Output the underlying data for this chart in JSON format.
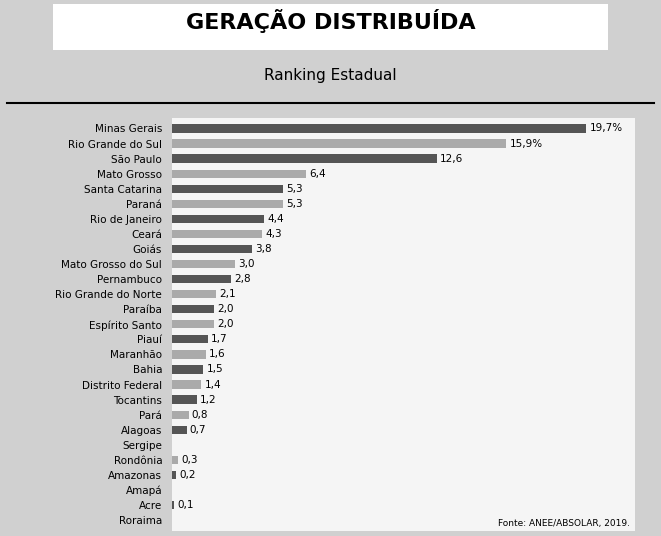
{
  "title": "GERAÇÃO DISTRIBUÍDA",
  "subtitle": "Ranking Estadual",
  "fonte": "Fonte: ANEE/ABSOLAR, 2019.",
  "categories": [
    "Minas Gerais",
    "Rio Grande do Sul",
    "São Paulo",
    "Mato Grosso",
    "Santa Catarina",
    "Paraná",
    "Rio de Janeiro",
    "Ceará",
    "Goiás",
    "Mato Grosso do Sul",
    "Pernambuco",
    "Rio Grande do Norte",
    "Paraíba",
    "Espírito Santo",
    "Piauí",
    "Maranhão",
    "Bahia",
    "Distrito Federal",
    "Tocantins",
    "Pará",
    "Alagoas",
    "Sergipe",
    "Rondônia",
    "Amazonas",
    "Amapá",
    "Acre",
    "Roraima"
  ],
  "values": [
    19.7,
    15.9,
    12.6,
    6.4,
    5.3,
    5.3,
    4.4,
    4.3,
    3.8,
    3.0,
    2.8,
    2.1,
    2.0,
    2.0,
    1.7,
    1.6,
    1.5,
    1.4,
    1.2,
    0.8,
    0.7,
    0.0,
    0.3,
    0.2,
    0.0,
    0.1,
    0.0
  ],
  "labels": [
    "19,7%",
    "15,9%",
    "12,6",
    "6,4",
    "5,3",
    "5,3",
    "4,4",
    "4,3",
    "3,8",
    "3,0",
    "2,8",
    "2,1",
    "2,0",
    "2,0",
    "1,7",
    "1,6",
    "1,5",
    "1,4",
    "1,2",
    "0,8",
    "0,7",
    "",
    "0,3",
    "0,2",
    "",
    "0,1",
    ""
  ],
  "bar_colors": [
    "#555555",
    "#aaaaaa",
    "#555555",
    "#aaaaaa",
    "#555555",
    "#aaaaaa",
    "#555555",
    "#aaaaaa",
    "#555555",
    "#aaaaaa",
    "#555555",
    "#aaaaaa",
    "#555555",
    "#aaaaaa",
    "#555555",
    "#aaaaaa",
    "#555555",
    "#aaaaaa",
    "#555555",
    "#aaaaaa",
    "#555555",
    "#aaaaaa",
    "#aaaaaa",
    "#555555",
    "#aaaaaa",
    "#555555",
    "#aaaaaa"
  ],
  "header_bg": "#d0d0d0",
  "title_fontsize": 16,
  "subtitle_fontsize": 11,
  "label_fontsize": 7.5,
  "ylabel_fontsize": 7.5,
  "bar_height": 0.55,
  "xlim": [
    0,
    22
  ]
}
